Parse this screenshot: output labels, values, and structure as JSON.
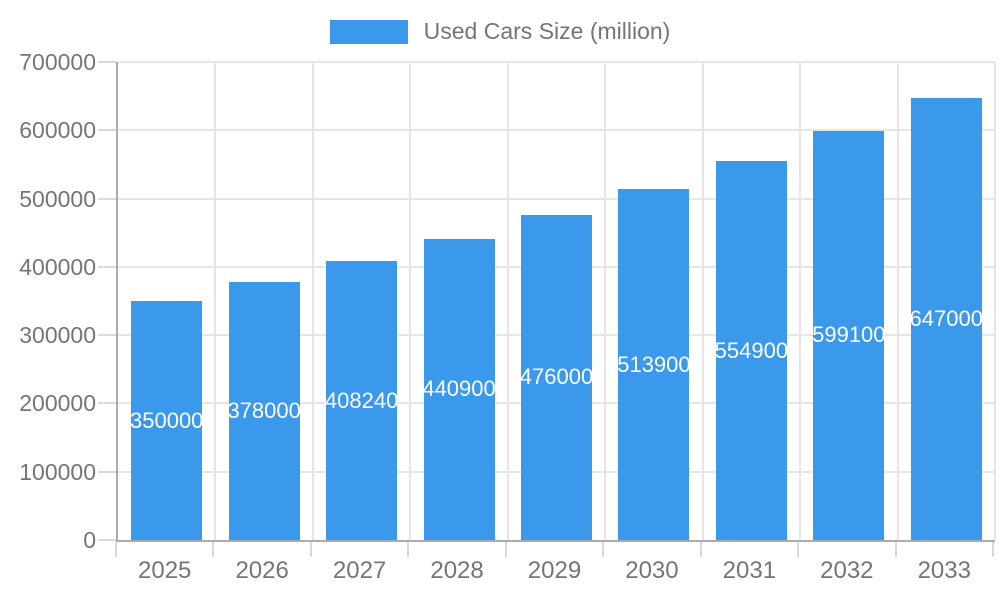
{
  "legend": {
    "label": "Used Cars Size (million)"
  },
  "colors": {
    "background": "#FFFFFF",
    "bar": "#3B99EC",
    "axis_text": "#757575",
    "grid_line": "#E6E6E6",
    "axis_line": "#ABABAB",
    "tick_line": "#D9D9D9",
    "bar_label_text": "#FFFFFF"
  },
  "chart_data": {
    "type": "bar",
    "title": "",
    "xlabel": "",
    "ylabel": "",
    "categories": [
      "2025",
      "2026",
      "2027",
      "2028",
      "2029",
      "2030",
      "2031",
      "2032",
      "2033"
    ],
    "series": [
      {
        "name": "Used Cars Size (million)",
        "values": [
          350000,
          378000,
          408240,
          440900,
          476000,
          513900,
          554900,
          599100,
          647000
        ],
        "color": "#3B99EC"
      }
    ],
    "bar_value_labels": [
      "350000",
      "378000",
      "408240",
      "440900",
      "476000",
      "513900",
      "554900",
      "599100",
      "647000"
    ],
    "ylim": [
      0,
      700000
    ],
    "ytick_step": 100000,
    "ytick_labels": [
      "0",
      "100000",
      "200000",
      "300000",
      "400000",
      "500000",
      "600000",
      "700000"
    ],
    "grid": true,
    "legend_position": "top",
    "bar_label_position": "center"
  }
}
